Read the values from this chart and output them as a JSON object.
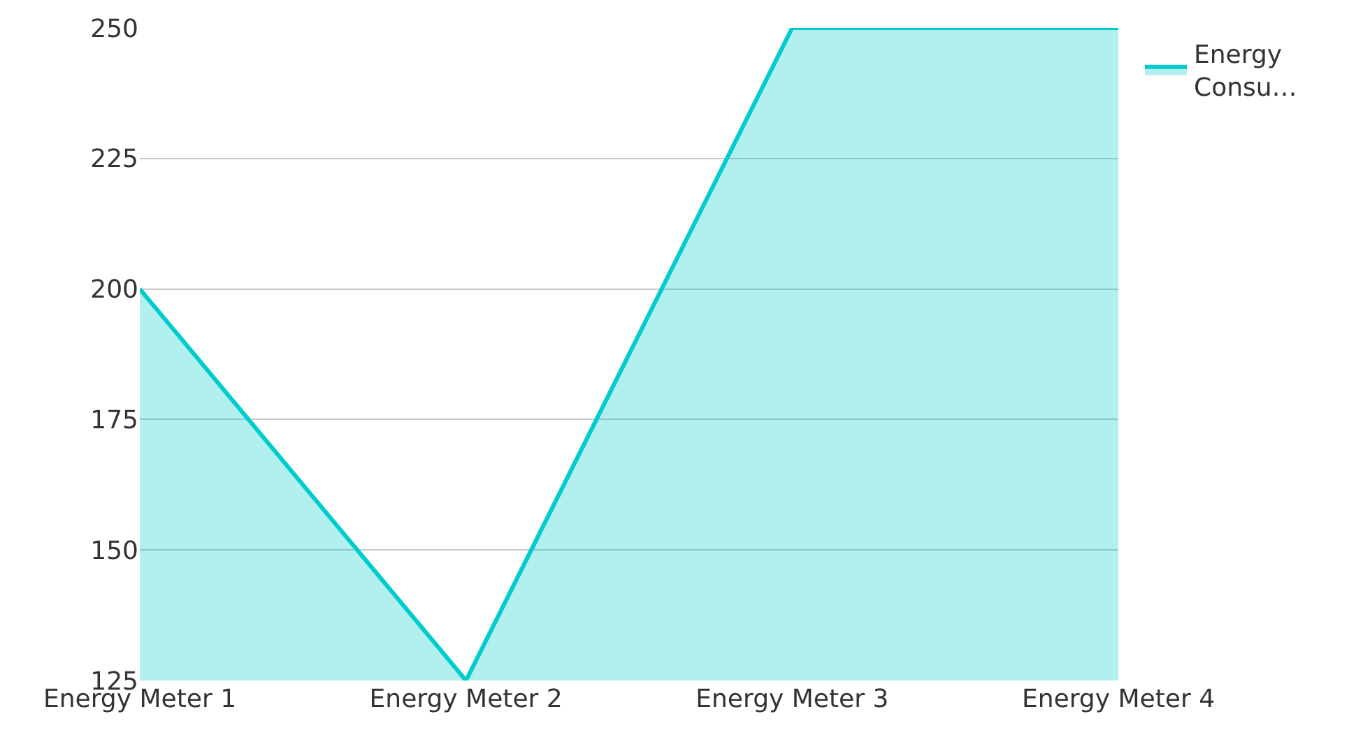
{
  "chart_data": {
    "type": "area",
    "categories": [
      "Energy Meter 1",
      "Energy Meter 2",
      "Energy Meter 3",
      "Energy Meter 4"
    ],
    "series": [
      {
        "name": "Energy Consu…",
        "color": "#00cccc",
        "values": [
          200,
          125,
          250,
          250
        ]
      }
    ],
    "ylim": [
      125,
      250
    ],
    "yticks": [
      125,
      150,
      175,
      200,
      225,
      250
    ],
    "grid": "y",
    "legend": "top right"
  }
}
